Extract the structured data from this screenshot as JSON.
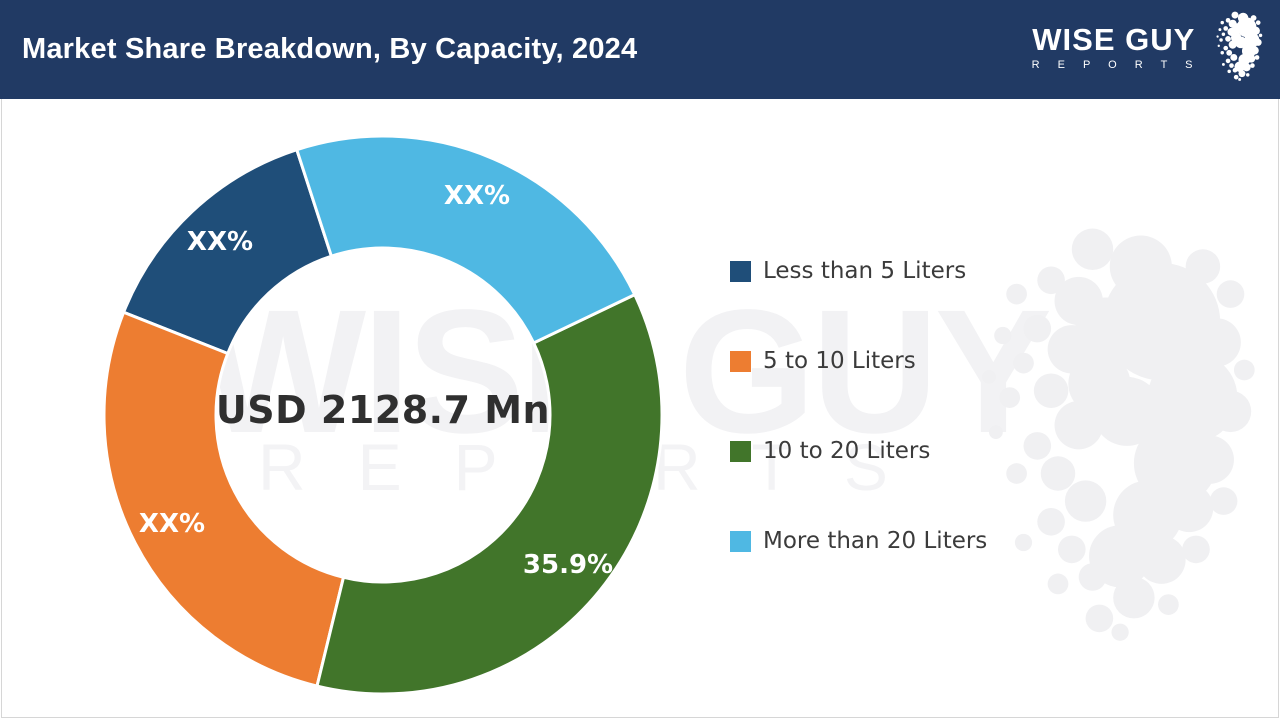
{
  "header": {
    "title": "Market Share Breakdown, By Capacity, 2024",
    "bg_color": "#213A64",
    "logo": {
      "line1": "WISE GUY",
      "line2": "R E P O R T S"
    }
  },
  "watermark": {
    "line1": "WISE GUY",
    "line2": "REPORTS"
  },
  "chart_data": {
    "type": "pie",
    "subtype": "donut",
    "title": "Market Share Breakdown, By Capacity, 2024",
    "center_label": "USD 2128.7 Mn",
    "start_angle": 108,
    "counterclockwise": true,
    "inner_radius_ratio": 0.6,
    "legend_position": "right",
    "categories": [
      "Less than 5 Liters",
      "5 to 10 Liters",
      "10 to 20 Liters",
      "More than 20 Liters"
    ],
    "values": [
      14.0,
      27.2,
      35.9,
      22.9
    ],
    "segments": [
      {
        "label": "Less than 5 Liters",
        "value": 14.0,
        "display": "XX%",
        "color": "#1F4E79"
      },
      {
        "label": "5 to 10 Liters",
        "value": 27.2,
        "display": "XX%",
        "color": "#ED7D31"
      },
      {
        "label": "10 to 20 Liters",
        "value": 35.9,
        "display": "35.9%",
        "color": "#41752A"
      },
      {
        "label": "More than 20 Liters",
        "value": 22.9,
        "display": "XX%",
        "color": "#4FB8E3"
      }
    ]
  }
}
